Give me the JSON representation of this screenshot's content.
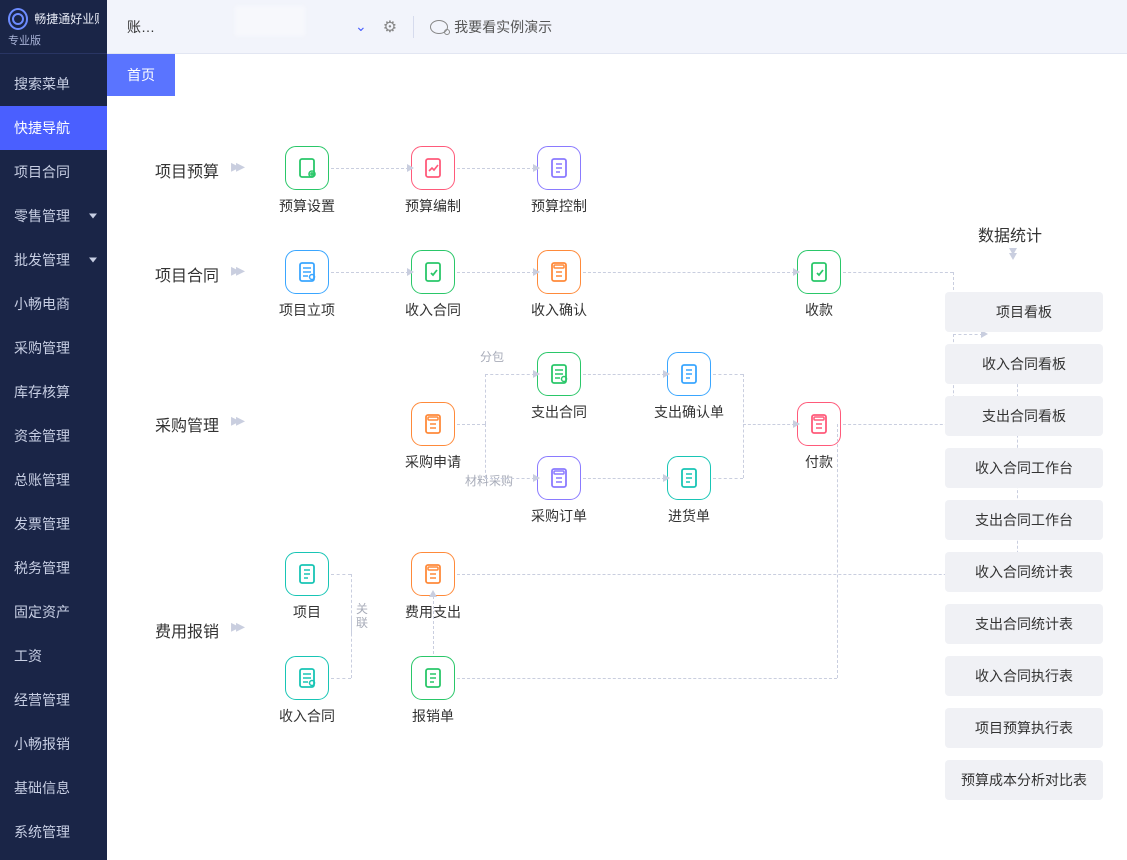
{
  "brand": {
    "name": "畅捷通好业财",
    "edition": "专业版"
  },
  "topbar": {
    "org": "账…",
    "demo": "我要看实例演示"
  },
  "tabs": {
    "home": "首页"
  },
  "sidebar": [
    {
      "label": "搜索菜单"
    },
    {
      "label": "快捷导航",
      "active": true
    },
    {
      "label": "项目合同"
    },
    {
      "label": "零售管理",
      "expandable": true
    },
    {
      "label": "批发管理",
      "expandable": true
    },
    {
      "label": "小畅电商"
    },
    {
      "label": "采购管理"
    },
    {
      "label": "库存核算"
    },
    {
      "label": "资金管理"
    },
    {
      "label": "总账管理"
    },
    {
      "label": "发票管理"
    },
    {
      "label": "税务管理"
    },
    {
      "label": "固定资产"
    },
    {
      "label": "工资"
    },
    {
      "label": "经营管理"
    },
    {
      "label": "小畅报销"
    },
    {
      "label": "基础信息"
    },
    {
      "label": "系统管理"
    }
  ],
  "sections": {
    "budget": "项目预算",
    "contract": "项目合同",
    "purchase": "采购管理",
    "expense": "费用报销"
  },
  "tags": {
    "subcontract": "分包",
    "material": "材料采购",
    "relate": "关\n联"
  },
  "nodes": {
    "r1": [
      {
        "label": "预算设置",
        "color": "#2ac769"
      },
      {
        "label": "预算编制",
        "color": "#ff5a7a"
      },
      {
        "label": "预算控制",
        "color": "#8a7aff"
      }
    ],
    "r2": [
      {
        "label": "项目立项",
        "color": "#3aa6ff"
      },
      {
        "label": "收入合同",
        "color": "#2ac769"
      },
      {
        "label": "收入确认",
        "color": "#ff8a3a"
      },
      {
        "label": "收款",
        "color": "#2ac769"
      }
    ],
    "r3": {
      "purchase_req": {
        "label": "采购申请",
        "color": "#ff8a3a"
      },
      "spend_contract": {
        "label": "支出合同",
        "color": "#2ac769"
      },
      "spend_confirm": {
        "label": "支出确认单",
        "color": "#3aa6ff"
      },
      "purchase_order": {
        "label": "采购订单",
        "color": "#8a7aff"
      },
      "stock_in": {
        "label": "进货单",
        "color": "#18c5b5"
      },
      "payment": {
        "label": "付款",
        "color": "#ff5a7a"
      }
    },
    "r4": {
      "project": {
        "label": "项目",
        "color": "#18c5b5"
      },
      "expense": {
        "label": "费用支出",
        "color": "#ff8a3a"
      },
      "income_contract": {
        "label": "收入合同",
        "color": "#18c5b5"
      },
      "reimburse": {
        "label": "报销单",
        "color": "#2ac769"
      }
    }
  },
  "stats": {
    "title": "数据统计",
    "buttons": [
      "项目看板",
      "收入合同看板",
      "支出合同看板",
      "收入合同工作台",
      "支出合同工作台",
      "收入合同统计表",
      "支出合同统计表",
      "收入合同执行表",
      "项目预算执行表",
      "预算成本分析对比表"
    ]
  },
  "colors": {
    "sidebar_bg": "#1a2547",
    "accent": "#4a5fff",
    "tab_bg": "#5a74ff",
    "canvas_bg": "#ffffff",
    "connector": "#c9cedf",
    "stat_btn_bg": "#f0f1f5"
  }
}
